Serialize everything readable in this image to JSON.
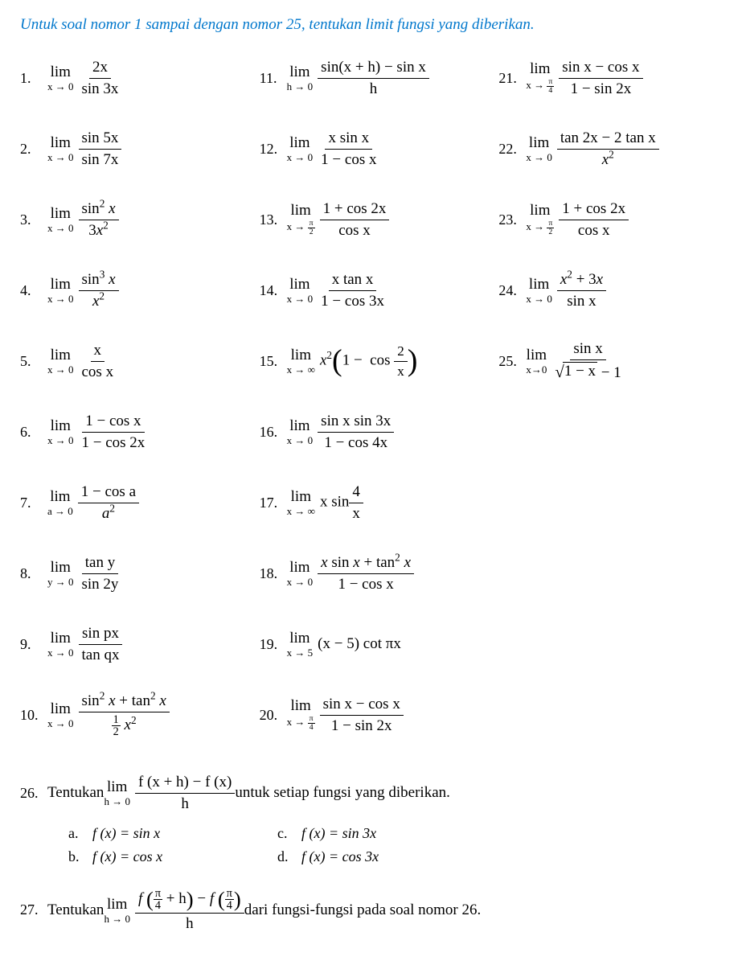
{
  "instruction": "Untuk soal nomor 1 sampai dengan nomor 25, tentukan limit fungsi yang diberikan.",
  "lim_label": "lim",
  "problems": {
    "p1": {
      "n": "1.",
      "sub": "x → 0",
      "top": "2x",
      "bot": "sin 3x"
    },
    "p2": {
      "n": "2.",
      "sub": "x → 0",
      "top": "sin 5x",
      "bot": "sin 7x"
    },
    "p3": {
      "n": "3.",
      "sub": "x → 0",
      "top": "sin² x",
      "bot": "3x²"
    },
    "p4": {
      "n": "4.",
      "sub": "x → 0",
      "top": "sin³ x",
      "bot": "x²"
    },
    "p5": {
      "n": "5.",
      "sub": "x → 0",
      "top": "x",
      "bot": "cos x"
    },
    "p6": {
      "n": "6.",
      "sub": "x → 0",
      "top": "1 − cos x",
      "bot": "1 − cos 2x"
    },
    "p7": {
      "n": "7.",
      "sub": "a → 0",
      "top": "1 − cos a",
      "bot": "a²"
    },
    "p8": {
      "n": "8.",
      "sub": "y → 0",
      "top": "tan y",
      "bot": "sin 2y"
    },
    "p9": {
      "n": "9.",
      "sub": "x → 0",
      "top": "sin px",
      "bot": "tan qx"
    },
    "p10": {
      "n": "10.",
      "sub": "x → 0",
      "top": "sin² x + tan² x",
      "bot_pre": "½",
      "bot": "x²"
    },
    "p11": {
      "n": "11.",
      "sub": "h → 0",
      "top": "sin(x + h) − sin x",
      "bot": "h"
    },
    "p12": {
      "n": "12.",
      "sub": "x → 0",
      "top": "x sin x",
      "bot": "1 − cos x"
    },
    "p13": {
      "n": "13.",
      "sub": "x → ",
      "sub_frac_top": "π",
      "sub_frac_bot": "2",
      "top": "1 + cos 2x",
      "bot": "cos x"
    },
    "p14": {
      "n": "14.",
      "sub": "x → 0",
      "top": "x tan x",
      "bot": "1 − cos 3x"
    },
    "p15": {
      "n": "15.",
      "sub": "x → ∞",
      "pre": "x²",
      "inner_pre": "1 −  cos ",
      "inner_frac_top": "2",
      "inner_frac_bot": "x"
    },
    "p16": {
      "n": "16.",
      "sub": "x → 0",
      "top": "sin x sin 3x",
      "bot": "1 − cos 4x"
    },
    "p17": {
      "n": "17.",
      "sub": "x → ∞",
      "pre": "x sin",
      "frac_top": "4",
      "frac_bot": "x"
    },
    "p18": {
      "n": "18.",
      "sub": "x → 0",
      "top": "x sin x + tan² x",
      "bot": "1 − cos x"
    },
    "p19": {
      "n": "19.",
      "sub": "x → 5",
      "expr": "(x − 5) cot πx"
    },
    "p20": {
      "n": "20.",
      "sub": "x → ",
      "sub_frac_top": "π",
      "sub_frac_bot": "4",
      "top": "sin x − cos x",
      "bot": "1 − sin 2x"
    },
    "p21": {
      "n": "21.",
      "sub": "x → ",
      "sub_frac_top": "π",
      "sub_frac_bot": "4",
      "top": "sin x − cos x",
      "bot": "1 − sin 2x"
    },
    "p22": {
      "n": "22.",
      "sub": "x → 0",
      "top": "tan 2x − 2 tan x",
      "bot": "x²"
    },
    "p23": {
      "n": "23.",
      "sub": "x  →  ",
      "sub_frac_top": "π",
      "sub_frac_bot": "2",
      "top": "1 + cos 2x",
      "bot": "cos x"
    },
    "p24": {
      "n": "24.",
      "sub": "x → 0",
      "top": "x² + 3x",
      "bot": "sin x"
    },
    "p25": {
      "n": "25.",
      "sub": "x→0",
      "top": "sin  x",
      "bot_pre": "√",
      "bot_sqrt": "1 − x",
      "bot_post": " − 1"
    }
  },
  "p26": {
    "n": "26.",
    "pre": "Tentukan ",
    "sub": "h → 0",
    "top": "f (x + h) − f (x)",
    "bot": "h",
    "post": " untuk setiap fungsi yang diberikan.",
    "a": {
      "l": "a.",
      "t": "f (x) = sin x"
    },
    "b": {
      "l": "b.",
      "t": "f (x) = cos x"
    },
    "c": {
      "l": "c.",
      "t": "f (x) = sin 3x"
    },
    "d": {
      "l": "d.",
      "t": "f (x) = cos 3x"
    }
  },
  "p27": {
    "n": "27.",
    "pre": "Tentukan ",
    "sub": "h → 0",
    "top_pre": "f ",
    "top_arg1_top": "π",
    "top_arg1_bot": "4",
    "top_mid": " + h",
    "top_sep": " − f ",
    "top_arg2_top": "π",
    "top_arg2_bot": "4",
    "bot": "h",
    "post": " dari fungsi-fungsi pada soal nomor 26."
  }
}
